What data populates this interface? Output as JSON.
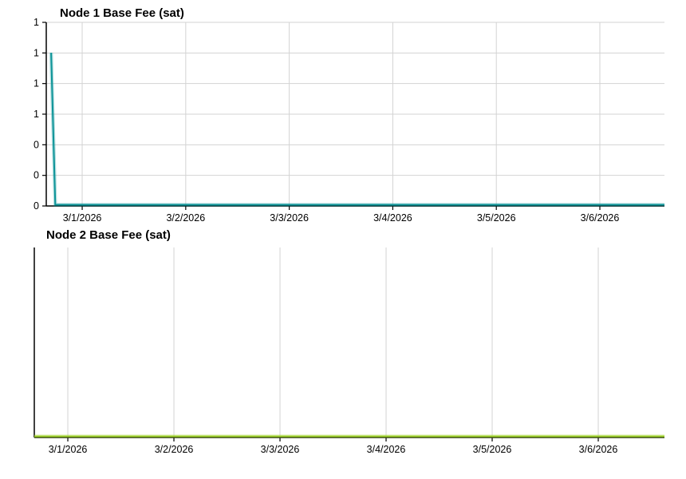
{
  "page": {
    "background_color": "#ffffff"
  },
  "chart_data": [
    {
      "type": "line",
      "title": "Node 1 Base Fee (sat)",
      "xlabel": "",
      "ylabel": "",
      "legend": "none",
      "grid": {
        "vertical": true,
        "horizontal": true
      },
      "grid_color": "#d3d3d3",
      "axis_color": "#000000",
      "x_tick_labels": [
        "3/1/2026",
        "3/2/2026",
        "3/3/2026",
        "3/4/2026",
        "3/5/2026",
        "3/6/2026"
      ],
      "x_tick_positions_days": [
        0,
        1,
        2,
        3,
        4,
        5
      ],
      "xlim_days": [
        -0.347,
        5.624
      ],
      "y_tick_labels_top_to_bottom": [
        "1",
        "1",
        "1",
        "1",
        "0",
        "0",
        "0"
      ],
      "y_tick_values_top_to_bottom": [
        1.2,
        1.0,
        0.8,
        0.6,
        0.4,
        0.2,
        0
      ],
      "ylim": [
        0,
        1.2
      ],
      "series": [
        {
          "name": "Node 1 base fee",
          "color": "#0d9498",
          "points": [
            {
              "x_days": -0.3,
              "y": 1
            },
            {
              "x_days": -0.26,
              "y": 0
            },
            {
              "x_days": 5.624,
              "y": 0
            }
          ],
          "description": "Starts at 1 sat just before 3/1/2026, drops immediately to 0 and remains 0 through 3/6/2026"
        }
      ]
    },
    {
      "type": "line",
      "title": "Node 2 Base Fee (sat)",
      "xlabel": "",
      "ylabel": "",
      "legend": "none",
      "grid": {
        "vertical": true,
        "horizontal": false
      },
      "grid_color": "#d3d3d3",
      "axis_color": "#000000",
      "x_tick_labels": [
        "3/1/2026",
        "3/2/2026",
        "3/3/2026",
        "3/4/2026",
        "3/5/2026",
        "3/6/2026"
      ],
      "x_tick_positions_days": [
        0,
        1,
        2,
        3,
        4,
        5
      ],
      "xlim_days": [
        -0.316,
        5.624
      ],
      "y_tick_labels_top_to_bottom": [],
      "ylim": [
        0,
        1
      ],
      "series": [
        {
          "name": "Node 2 base fee",
          "color": "#9ed22b",
          "points": [
            {
              "x_days": -0.316,
              "y": 0
            },
            {
              "x_days": 5.624,
              "y": 0
            }
          ],
          "description": "Flat at 0 across the entire range 3/1/2026 - 3/6/2026"
        }
      ]
    }
  ]
}
